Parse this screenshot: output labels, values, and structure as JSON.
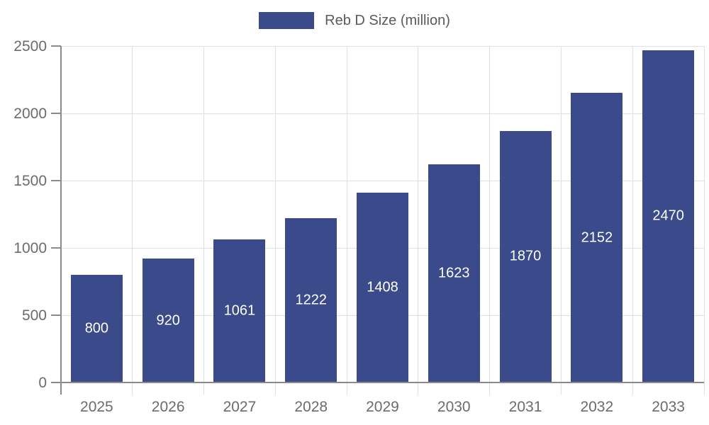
{
  "chart_data": {
    "type": "bar",
    "title": "",
    "legend": "Reb D Size (million)",
    "categories": [
      "2025",
      "2026",
      "2027",
      "2028",
      "2029",
      "2030",
      "2031",
      "2032",
      "2033"
    ],
    "values": [
      800,
      920,
      1061,
      1222,
      1408,
      1623,
      1870,
      2152,
      2470
    ],
    "series": [
      {
        "name": "Reb D Size (million)",
        "values": [
          800,
          920,
          1061,
          1222,
          1408,
          1623,
          1870,
          2152,
          2470
        ]
      }
    ],
    "xlabel": "",
    "ylabel": "",
    "ylim": [
      0,
      2500
    ],
    "y_ticks": [
      0,
      500,
      1000,
      1500,
      2000,
      2500
    ],
    "grid": true,
    "legend_position": "top-center",
    "value_labels_visible": true,
    "colors": {
      "bar": "#3A4A8A",
      "grid": "#DFDFE1",
      "axis": "#8A8A8E",
      "tick_label": "#6B6B6E",
      "value_label": "#FFFFFF",
      "legend_text": "#5A5A5E",
      "background": "#FFFFFF"
    }
  }
}
